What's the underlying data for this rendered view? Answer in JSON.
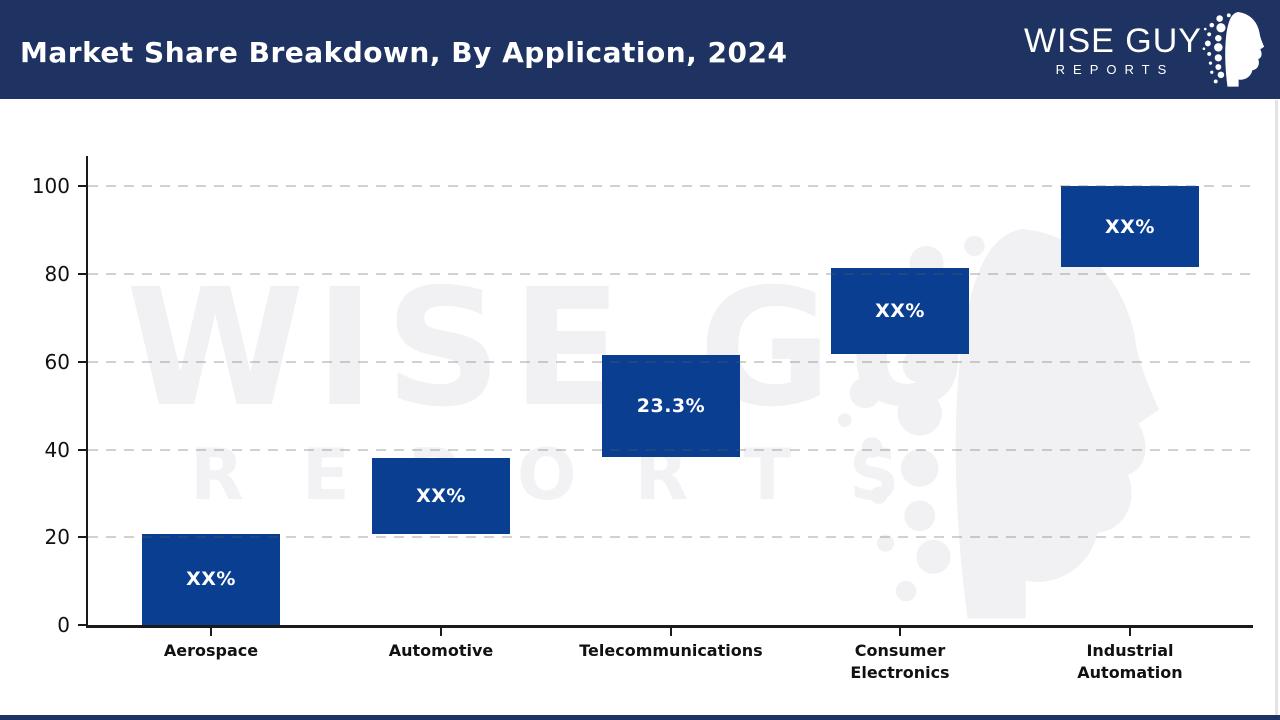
{
  "header": {
    "title": "Market Share Breakdown, By Application, 2024",
    "logo": {
      "primary": "WISE GUY",
      "secondary": "REPORTS"
    }
  },
  "watermark": {
    "primary": "WISE GUY",
    "secondary": "REPORTS"
  },
  "chart_data": {
    "type": "bar",
    "subtype": "waterfall",
    "title": "Market Share Breakdown, By Application, 2024",
    "categories": [
      "Aerospace",
      "Automotive",
      "Telecommunications",
      "Consumer Electronics",
      "Industrial Automation"
    ],
    "segments": [
      {
        "category": "Aerospace",
        "start": 0,
        "end": 20.8,
        "label": "XX%"
      },
      {
        "category": "Automotive",
        "start": 20.8,
        "end": 38.1,
        "label": "XX%"
      },
      {
        "category": "Telecommunications",
        "start": 38.3,
        "end": 61.6,
        "label": "23.3%"
      },
      {
        "category": "Consumer Electronics",
        "start": 61.8,
        "end": 81.4,
        "label": "XX%"
      },
      {
        "category": "Industrial Automation",
        "start": 81.6,
        "end": 100,
        "label": "XX%"
      }
    ],
    "yticks": [
      0,
      20,
      40,
      60,
      80,
      100
    ],
    "ylim": [
      0,
      106
    ],
    "bar_centers_pct": [
      10.56,
      30.3,
      50.04,
      69.7,
      89.44
    ],
    "bar_width_pct": 11.85,
    "grid": "horizontal-dashed",
    "legend": "none",
    "xlabel": "",
    "ylabel": ""
  },
  "colors": {
    "header_bg": "#1e3362",
    "footer_bg": "#1e3362",
    "bar": "#0a3e91",
    "bar_label": "#ffffff",
    "axis": "#1a1a1a",
    "tick_text": "#111111",
    "watermark": "#f1f1f4",
    "background": "#ffffff"
  }
}
